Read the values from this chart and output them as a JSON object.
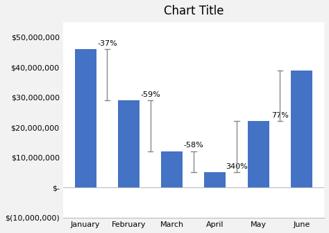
{
  "title": "Chart Title",
  "categories": [
    "January",
    "February",
    "March",
    "April",
    "May",
    "June"
  ],
  "values": [
    46000000,
    29000000,
    12000000,
    5000000,
    22000000,
    39000000
  ],
  "bar_color": "#4472C4",
  "error_bar_color": "#888888",
  "ylim": [
    -10000000,
    55000000
  ],
  "yticks": [
    -10000000,
    0,
    10000000,
    20000000,
    30000000,
    40000000,
    50000000
  ],
  "ytick_labels": [
    "$(10,000,000)",
    "$-",
    "$10,000,000",
    "$20,000,000",
    "$30,000,000",
    "$40,000,000",
    "$50,000,000"
  ],
  "pct_labels": [
    "-37%",
    "-59%",
    "-58%",
    "340%",
    "77%"
  ],
  "background_color": "#F2F2F2",
  "plot_bg_color": "#FFFFFF",
  "grid_color": "#FFFFFF",
  "title_fontsize": 12,
  "label_fontsize": 8,
  "tick_fontsize": 8,
  "bar_width": 0.5
}
